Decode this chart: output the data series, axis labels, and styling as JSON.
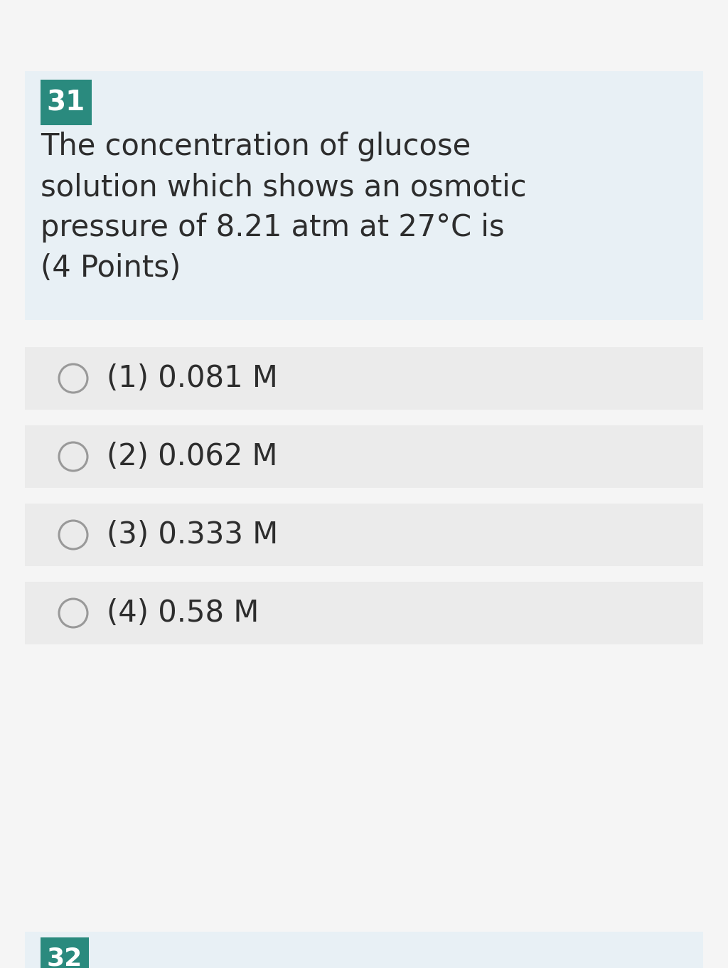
{
  "page_bg": "#f5f5f5",
  "question_box_bg": "#e8f0f5",
  "question_number": "31",
  "question_number_bg": "#2a8a7e",
  "question_number_color": "#ffffff",
  "question_text_lines": [
    "The concentration of glucose",
    "solution which shows an osmotic",
    "pressure of 8.21 atm at 27°C is",
    "(4 Points)"
  ],
  "question_text_color": "#2d2d2d",
  "options": [
    "(1) 0.081 M",
    "(2) 0.062 M",
    "(3) 0.333 M",
    "(4) 0.58 M"
  ],
  "option_box_bg": "#ebebeb",
  "option_text_color": "#2d2d2d",
  "radio_color": "#999999",
  "next_question_number": "32",
  "next_question_bg": "#2a8a7e",
  "next_question_color": "#ffffff",
  "next_question_box_bg": "#e8f0f5"
}
